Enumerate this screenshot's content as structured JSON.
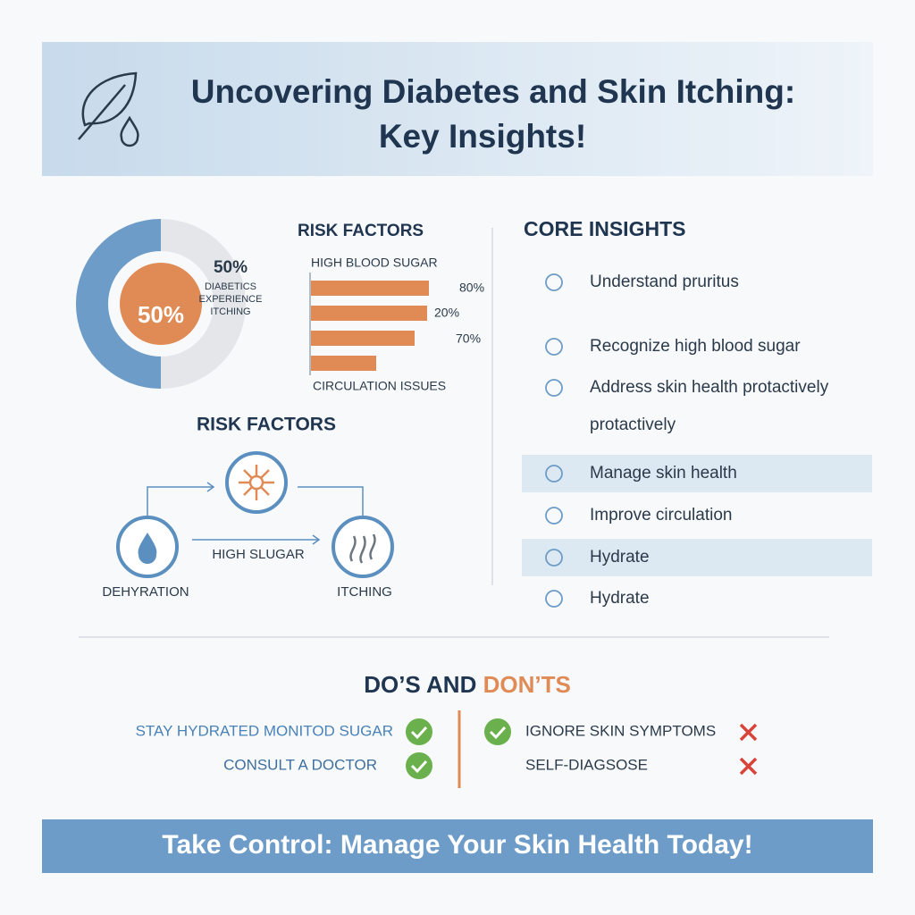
{
  "header": {
    "title_lines": [
      "Uncovering Diabetes and Skin Itching:",
      "Key Insights!"
    ]
  },
  "donut": {
    "value": 50,
    "value_labels": [
      "50%",
      "50%"
    ],
    "caption": [
      "DIABETICS",
      "EXPERIENCE",
      "ITCHING"
    ]
  },
  "risk_bars": {
    "title": "RISK FACTORS",
    "top_label": "HIGH BLOOD SUGAR",
    "bottom_label": "CIRCULATION ISSUES",
    "value_labels": [
      "80%",
      "20%",
      "70%"
    ]
  },
  "flow": {
    "title": "RISK FACTORS",
    "left_label": "DEHYRATION",
    "edge_label": "HIGH SLUGAR",
    "right_label": "ITCHING"
  },
  "insights": {
    "title": "CORE INSIGHTS",
    "items": [
      {
        "text": [
          "Understand pruritus"
        ],
        "highlight": false
      },
      {
        "text": [
          "Recognize high blood sugar"
        ],
        "highlight": false
      },
      {
        "text": [
          "Address skin health protactively",
          "protactively"
        ],
        "highlight": false
      },
      {
        "text": [
          "Manage skin health"
        ],
        "highlight": true
      },
      {
        "text": [
          "Improve circulation"
        ],
        "highlight": false
      },
      {
        "text": [
          "Hydrate"
        ],
        "highlight": true
      },
      {
        "text": [
          "Hydrate"
        ],
        "highlight": false
      }
    ]
  },
  "dos": {
    "title_do": "DO’S AND",
    "title_dont": "DON’TS",
    "do": [
      "STAY HYDRATED MONITOD SUGAR",
      "CONSULT A DOCTOR"
    ],
    "dont": [
      "IGNORE SKIN SYMPTOMS",
      "SELF-DIAGSOSE"
    ]
  },
  "footer": {
    "text": "Take Control: Manage Your Skin Health Today!"
  }
}
